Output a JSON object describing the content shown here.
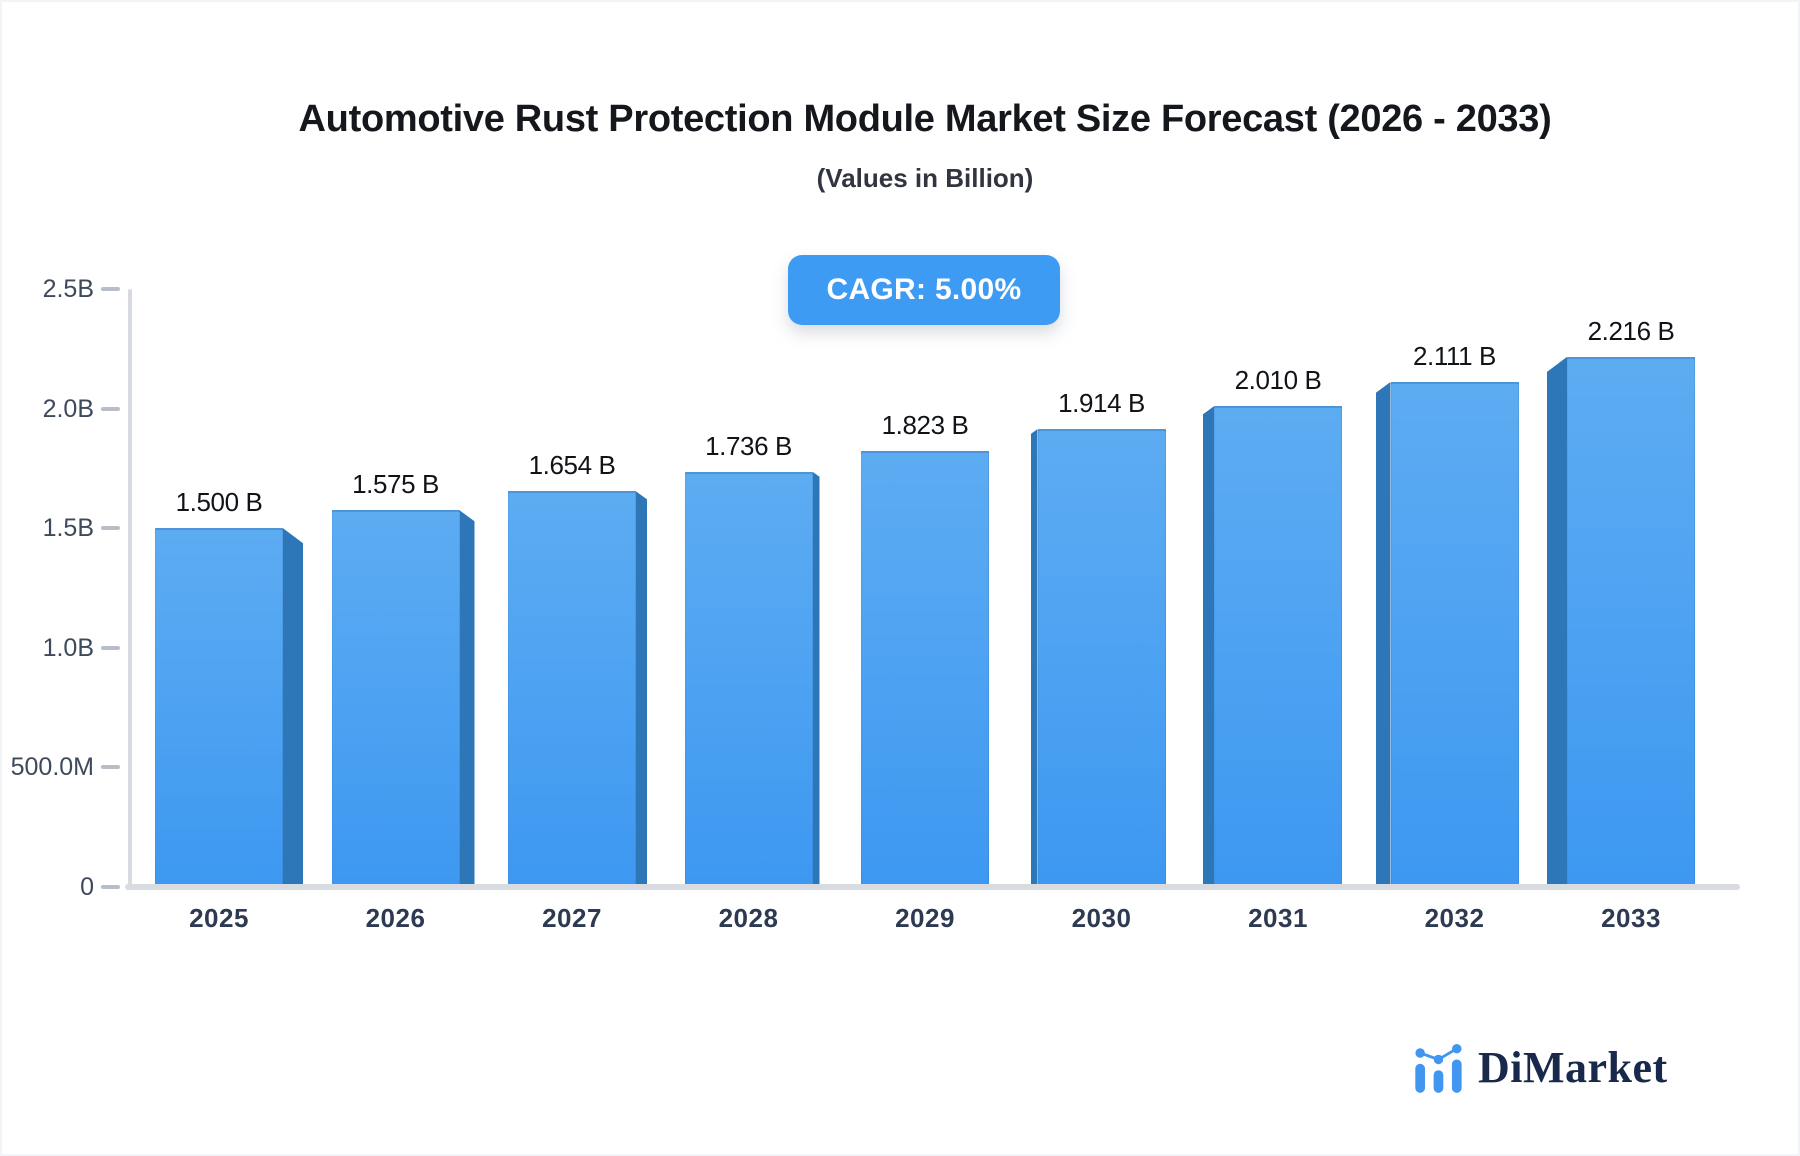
{
  "header": {
    "title": "Automotive Rust Protection Module Market Size Forecast (2026 - 2033)",
    "subtitle": "(Values in Billion)"
  },
  "badge": {
    "label": "CAGR: 5.00%"
  },
  "chart_data": {
    "type": "bar",
    "title": "Automotive Rust Protection Module Market Size Forecast (2026 - 2033)",
    "subtitle": "(Values in Billion)",
    "cagr": "5.00%",
    "categories": [
      "2025",
      "2026",
      "2027",
      "2028",
      "2029",
      "2030",
      "2031",
      "2032",
      "2033"
    ],
    "values": [
      1.5,
      1.575,
      1.654,
      1.736,
      1.823,
      1.914,
      2.01,
      2.111,
      2.216
    ],
    "value_labels": [
      "1.500 B",
      "1.575 B",
      "1.654 B",
      "1.736 B",
      "1.823 B",
      "1.914 B",
      "2.010 B",
      "2.111 B",
      "2.216 B"
    ],
    "xlabel": "",
    "ylabel": "",
    "ylim": [
      0,
      2.5
    ],
    "y_ticks": [
      {
        "label": "0",
        "value": 0.0
      },
      {
        "label": "500.0M",
        "value": 0.5
      },
      {
        "label": "1.0B",
        "value": 1.0
      },
      {
        "label": "1.5B",
        "value": 1.5
      },
      {
        "label": "2.0B",
        "value": 2.0
      },
      {
        "label": "2.5B",
        "value": 2.5
      }
    ],
    "grid": false,
    "legend": false
  },
  "colors": {
    "bar_face_top": "#5dacf2",
    "bar_face_bottom": "#3d98f1",
    "bar_side": "#2d76b7",
    "badge_bg": "#3e9bf4",
    "baseline": "#d8dbe0",
    "axis_line": "#d7dae0",
    "tick_dash": "#b8bec8",
    "logo_blue": "#4196f0"
  },
  "logo": {
    "brand": "DiMarket"
  }
}
